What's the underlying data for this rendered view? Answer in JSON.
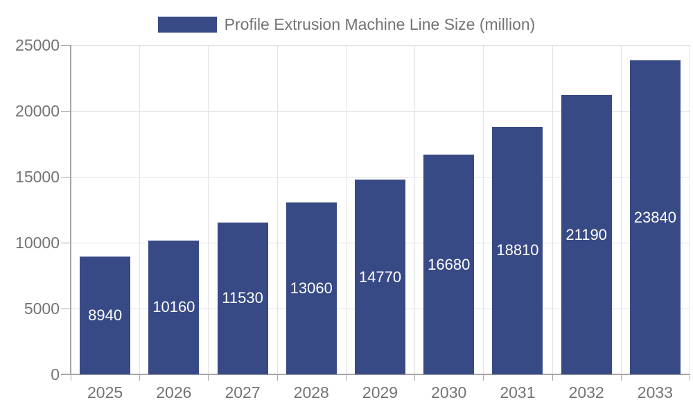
{
  "legend": {
    "label": "Profile Extrusion Machine Line Size (million)"
  },
  "colors": {
    "bar": "#384A85",
    "grid_line": "#e1e1e4",
    "axis_line": "#a6a6a6",
    "tick_label": "#737373",
    "value_label": "#ffffff",
    "background": "#ffffff"
  },
  "chart_data": {
    "type": "bar",
    "title": "Profile Extrusion Machine Line Size (million)",
    "categories": [
      "2025",
      "2026",
      "2027",
      "2028",
      "2029",
      "2030",
      "2031",
      "2032",
      "2033"
    ],
    "values": [
      8940,
      10160,
      11530,
      13060,
      14770,
      16680,
      18810,
      21190,
      23840
    ],
    "xlabel": "",
    "ylabel": "",
    "ylim": [
      0,
      25000
    ],
    "yticks": [
      0,
      5000,
      10000,
      15000,
      20000,
      25000
    ],
    "grid": true,
    "legend_position": "top",
    "value_label_position": "inside-center"
  }
}
